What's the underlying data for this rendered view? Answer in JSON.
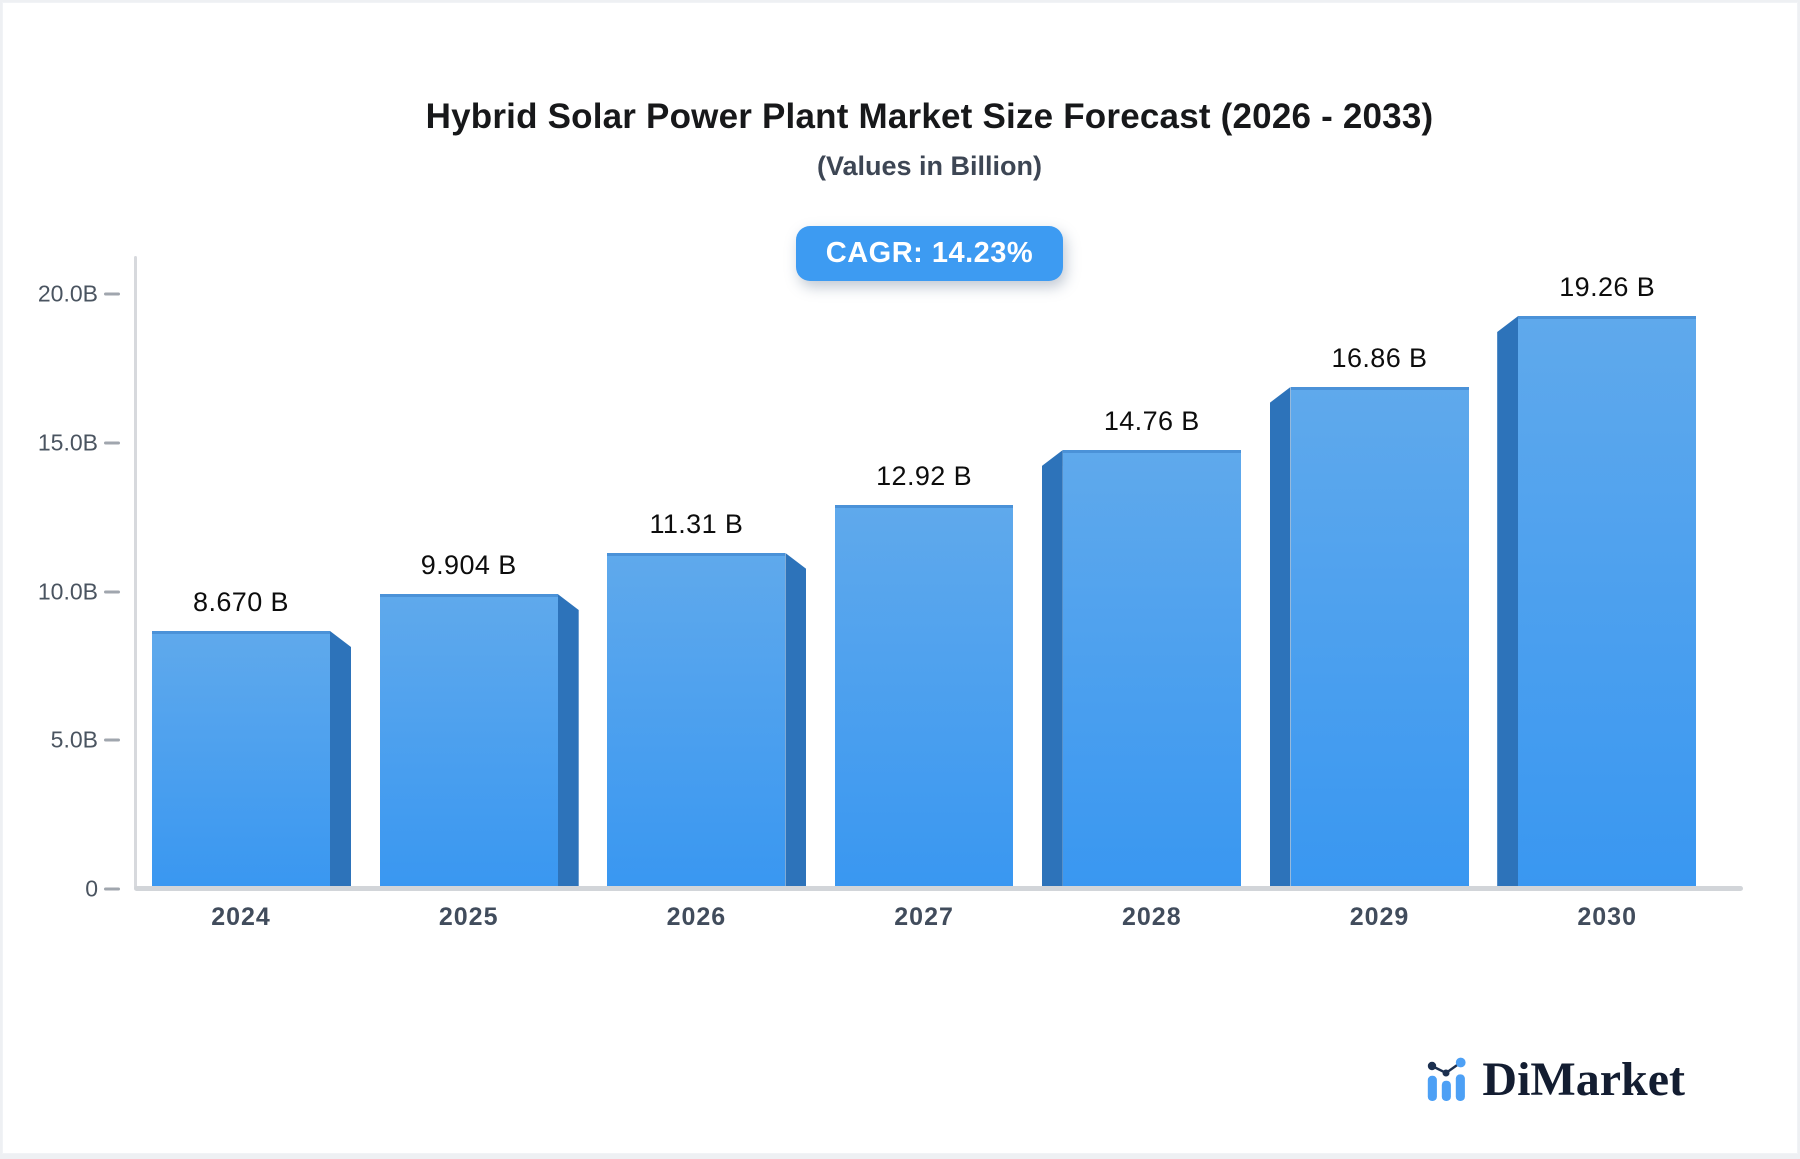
{
  "chart_data": {
    "type": "bar",
    "title": "Hybrid Solar Power Plant Market Size Forecast (2026 - 2033)",
    "subtitle": "(Values in Billion)",
    "annotation_badge": "CAGR: 14.23%",
    "categories": [
      "2024",
      "2025",
      "2026",
      "2027",
      "2028",
      "2029",
      "2030"
    ],
    "values": [
      8.67,
      9.904,
      11.31,
      12.92,
      14.76,
      16.86,
      19.26
    ],
    "value_labels": [
      "8.670 B",
      "9.904 B",
      "11.31 B",
      "12.92 B",
      "14.76 B",
      "16.86 B",
      "19.26 B"
    ],
    "xlabel": "",
    "ylabel": "",
    "ylim": [
      0,
      20
    ],
    "grid": false,
    "legend": false,
    "y_ticks": [
      {
        "label": "0",
        "value": 0
      },
      {
        "label": "5.0B",
        "value": 5
      },
      {
        "label": "10.0B",
        "value": 10
      },
      {
        "label": "15.0B",
        "value": 15
      },
      {
        "label": "20.0B",
        "value": 20
      }
    ],
    "colors": {
      "bar_face_top": "#5FA9EC",
      "bar_face_bottom": "#3997F1",
      "bar_top_edge": "#4B92D8",
      "bar_side": "#2D73BA",
      "axis_line": "#D7D9DD",
      "baseline": "#D2D5D9",
      "tick": "#A0A6AE",
      "badge_bg": "#3D9BF2",
      "badge_text": "#FFFFFF"
    }
  },
  "logo": {
    "text": "DiMarket",
    "navy": "#1C3050",
    "blue": "#4DA0F5"
  }
}
